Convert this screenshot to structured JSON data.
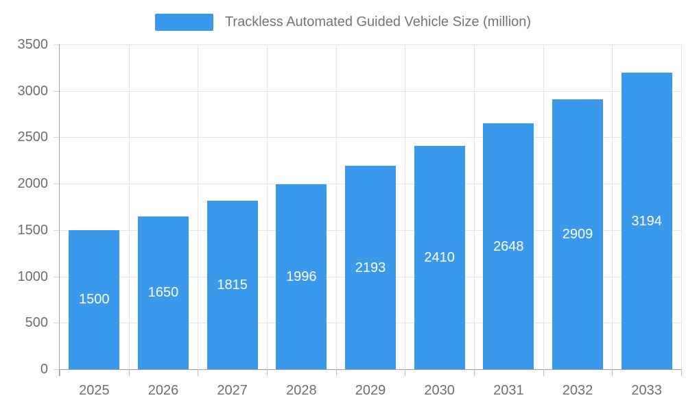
{
  "legend": {
    "label": "Trackless Automated Guided Vehicle Size (million)",
    "swatch_color": "#3b99eb"
  },
  "chart_data": {
    "type": "bar",
    "title": "Trackless Automated Guided Vehicle Size (million)",
    "categories": [
      "2025",
      "2026",
      "2027",
      "2028",
      "2029",
      "2030",
      "2031",
      "2032",
      "2033"
    ],
    "values": [
      1500,
      1650,
      1815,
      1996,
      2193,
      2410,
      2648,
      2909,
      3194
    ],
    "xlabel": "",
    "ylabel": "",
    "ylim": [
      0,
      3500
    ],
    "yticks": [
      0,
      500,
      1000,
      1500,
      2000,
      2500,
      3000,
      3500
    ],
    "grid": true,
    "legend_position": "top-center",
    "bar_color": "#3b99eb",
    "value_label_color": "#ffffff",
    "axis_text_color": "#6e6e6e",
    "gridline_color": "#e6e6e6",
    "axis_line_color": "#9e9e9e"
  }
}
